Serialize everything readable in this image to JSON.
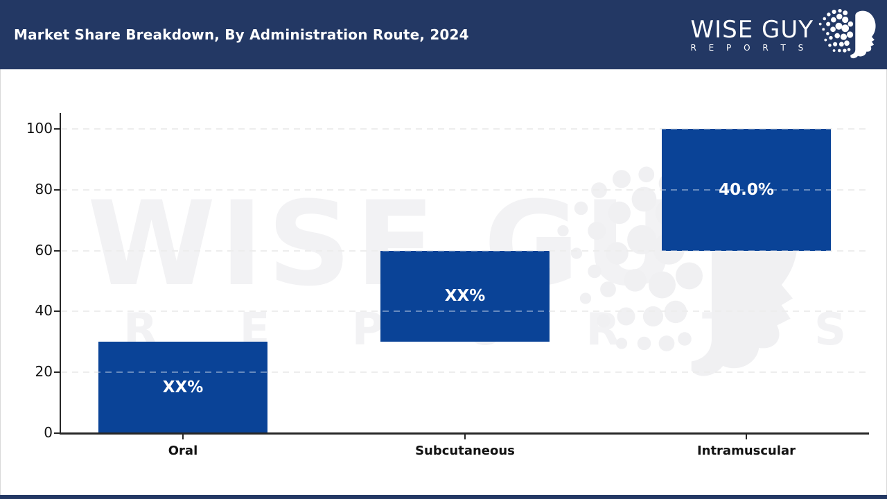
{
  "header": {
    "title": "Market Share Breakdown, By Administration Route, 2024",
    "logo": {
      "line1": "WISE GUY",
      "line2": "R E P O R T S"
    }
  },
  "watermark": {
    "line1": "WISE GUY",
    "line2": "R E P O R T S"
  },
  "colors": {
    "header_bg": "#233864",
    "footer_bg": "#233864",
    "bar": "#0a4397",
    "grid": "#e2e2e2",
    "axis": "#262626",
    "bar_label_text": "#ffffff",
    "tick_text": "#111111",
    "watermark": "#f2f2f4"
  },
  "chart_data": {
    "type": "bar",
    "subtype": "floating-waterfall",
    "title": "Market Share Breakdown, By Administration Route, 2024",
    "categories": [
      "Oral",
      "Subcutaneous",
      "Intramuscular"
    ],
    "series": [
      {
        "name": "Market Share (%)",
        "segments": [
          {
            "category": "Oral",
            "start": 0,
            "end": 30,
            "label": "XX%"
          },
          {
            "category": "Subcutaneous",
            "start": 30,
            "end": 60,
            "label": "XX%"
          },
          {
            "category": "Intramuscular",
            "start": 60,
            "end": 100,
            "label": "40.0%"
          }
        ]
      }
    ],
    "xlabel": "",
    "ylabel": "",
    "ylim": [
      0,
      100
    ],
    "yticks": [
      0,
      20,
      40,
      60,
      80,
      100
    ],
    "grid": "horizontal-dashed",
    "legend": "none"
  }
}
